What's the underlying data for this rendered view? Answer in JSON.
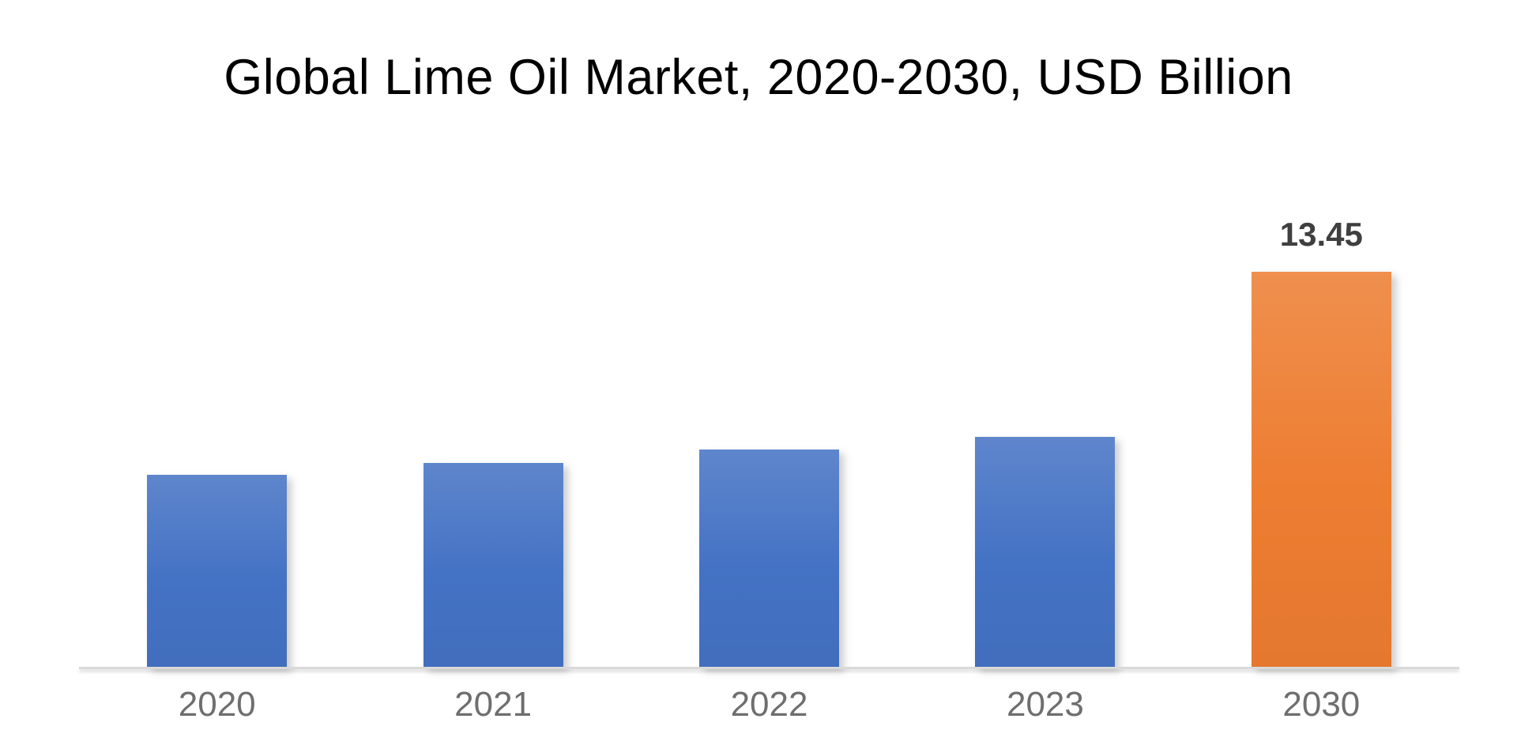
{
  "chart_data": {
    "type": "bar",
    "title": "Global Lime Oil Market, 2020-2030, USD Billion",
    "unit": "USD Billion",
    "categories": [
      "2020",
      "2021",
      "2022",
      "2023",
      "2030"
    ],
    "values": [
      6.55,
      6.95,
      7.41,
      7.84,
      13.45
    ],
    "value_labels": [
      "",
      "",
      "",
      "",
      "13.45"
    ],
    "bar_colors": [
      "#4472C4",
      "#4472C4",
      "#4472C4",
      "#4472C4",
      "#ED7D31"
    ],
    "xlabel": "",
    "ylabel": "",
    "ylim": [
      0,
      13.45
    ],
    "grid": false,
    "legend": false,
    "y_axis_visible": false,
    "x_axis_visible": true
  },
  "colors": {
    "bar_default": "#4472C4",
    "bar_highlight": "#ED7D31",
    "axis_line": "#D9D9D9",
    "tick_label": "#6E6E6E",
    "data_label": "#3F3F3F",
    "title": "#000000",
    "background": "#FFFFFF"
  }
}
